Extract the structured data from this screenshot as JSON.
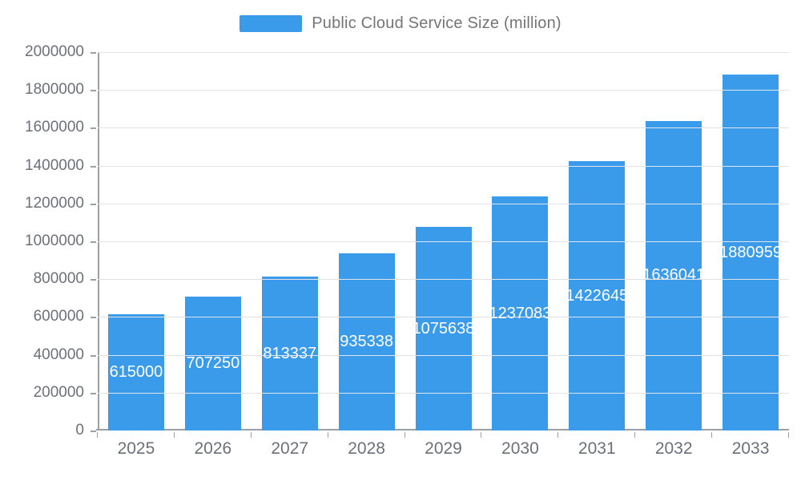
{
  "legend": {
    "label": "Public Cloud Service Size (million)"
  },
  "colors": {
    "bar": "#3b9beb",
    "axis_text": "#6e7079",
    "legend_text": "#757575",
    "gridline": "#e0e3e8",
    "axis_line": "#9aa0a6",
    "bar_label": "#ffffff",
    "background": "#ffffff"
  },
  "chart_data": {
    "type": "bar",
    "title": "Public Cloud Service Size (million)",
    "categories": [
      "2025",
      "2026",
      "2027",
      "2028",
      "2029",
      "2030",
      "2031",
      "2032",
      "2033"
    ],
    "values": [
      615000,
      707250,
      813337,
      935338,
      1075638,
      1237083,
      1422645,
      1636041,
      1880959
    ],
    "data_labels": [
      "615000",
      "707250",
      "813337",
      "935338",
      "1075638",
      "1237083",
      "1422645",
      "1636041",
      "1880959"
    ],
    "series_name": "Public Cloud Service Size (million)",
    "xlabel": "",
    "ylabel": "",
    "ylim": [
      0,
      2000000
    ],
    "ytick_step": 200000,
    "ytick_labels": [
      "0",
      "200000",
      "400000",
      "600000",
      "800000",
      "1000000",
      "1200000",
      "1400000",
      "1600000",
      "1800000",
      "2000000"
    ],
    "grid": true,
    "legend_position": "top-center",
    "data_label_position": "inside-center"
  }
}
